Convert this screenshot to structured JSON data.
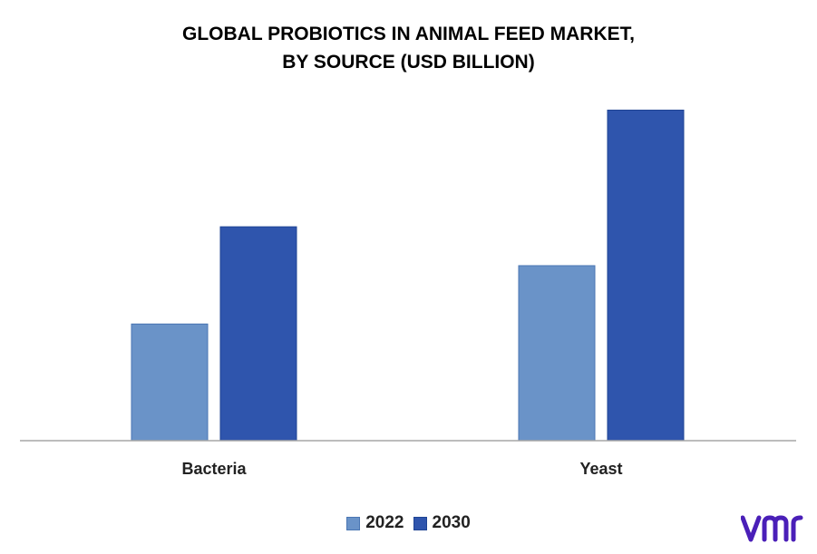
{
  "colors": {
    "series_2022": "#6a93c8",
    "series_2022_stroke": "#4a76b3",
    "series_2030": "#2f55ad",
    "series_2030_stroke": "#1f4494",
    "axis": "#a6a6a6",
    "logo": "#4a1fb8"
  },
  "chart_data": {
    "type": "bar",
    "title": "GLOBAL  PROBIOTICS IN ANIMAL FEED MARKET,\nBY SOURCE (USD BILLION)",
    "xlabel": "",
    "ylabel": "",
    "categories": [
      "Bacteria",
      "Yeast"
    ],
    "series": [
      {
        "name": "2022",
        "values": [
          1.2,
          1.8
        ]
      },
      {
        "name": "2030",
        "values": [
          2.2,
          3.4
        ]
      }
    ],
    "ylim": [
      0,
      3.6
    ],
    "grid": false,
    "legend_position": "bottom"
  },
  "legend": {
    "items": [
      {
        "label": "2022",
        "color_key": "series_2022"
      },
      {
        "label": "2030",
        "color_key": "series_2030"
      }
    ]
  },
  "logo": {
    "icon": "vmr-logo-icon",
    "text": "vmr"
  }
}
